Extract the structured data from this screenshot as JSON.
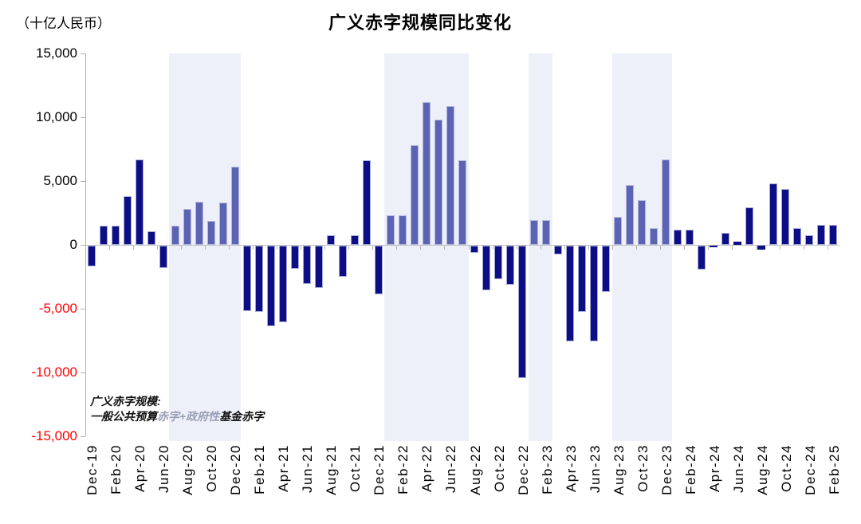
{
  "title": "广义赤字规模同比变化",
  "unit_label": "（十亿人民币）",
  "annotation": {
    "line1": "广义赤字规模:",
    "line2_prefix": "一般公共预算",
    "line2_faded": "赤字+政府性",
    "line2_suffix": "基金赤字"
  },
  "y_axis": {
    "tick_labels": [
      "15,000",
      "10,000",
      "5,000",
      "0",
      "-5,000",
      "-10,000",
      "-15,000"
    ],
    "tick_values": [
      15000,
      10000,
      5000,
      0,
      -5000,
      -10000,
      -15000
    ],
    "negative_label_color": "#ff0000"
  },
  "x_axis": {
    "tick_labels": [
      "Dec-19",
      "Feb-20",
      "Apr-20",
      "Jun-20",
      "Aug-20",
      "Oct-20",
      "Dec-20",
      "Feb-21",
      "Apr-21",
      "Jun-21",
      "Aug-21",
      "Oct-21",
      "Dec-21",
      "Feb-22",
      "Apr-22",
      "Jun-22",
      "Aug-22",
      "Oct-22",
      "Dec-22",
      "Feb-23",
      "Apr-23",
      "Jun-23",
      "Aug-23",
      "Oct-23",
      "Dec-23",
      "Feb-24",
      "Apr-24",
      "Jun-24",
      "Aug-24",
      "Oct-24",
      "Dec-24",
      "Feb-25"
    ]
  },
  "chart_data": {
    "type": "bar",
    "title": "广义赤字规模同比变化",
    "ylabel": "（十亿人民币）",
    "ylim": [
      -15000,
      15000
    ],
    "y_tick_step": 5000,
    "grid": false,
    "legend_position": "none",
    "x": [
      "Dec-19",
      "Jan-20",
      "Feb-20",
      "Mar-20",
      "Apr-20",
      "May-20",
      "Jun-20",
      "Jul-20",
      "Aug-20",
      "Sep-20",
      "Oct-20",
      "Nov-20",
      "Dec-20",
      "Jan-21",
      "Feb-21",
      "Mar-21",
      "Apr-21",
      "May-21",
      "Jun-21",
      "Jul-21",
      "Aug-21",
      "Sep-21",
      "Oct-21",
      "Nov-21",
      "Dec-21",
      "Jan-22",
      "Feb-22",
      "Mar-22",
      "Apr-22",
      "May-22",
      "Jun-22",
      "Jul-22",
      "Aug-22",
      "Sep-22",
      "Oct-22",
      "Nov-22",
      "Dec-22",
      "Jan-23",
      "Feb-23",
      "Mar-23",
      "Apr-23",
      "May-23",
      "Jun-23",
      "Jul-23",
      "Aug-23",
      "Sep-23",
      "Oct-23",
      "Nov-23",
      "Dec-23",
      "Jan-24",
      "Feb-24",
      "Mar-24",
      "Apr-24",
      "May-24",
      "Jun-24",
      "Jul-24",
      "Aug-24",
      "Sep-24",
      "Oct-24",
      "Nov-24",
      "Dec-24",
      "Jan-25",
      "Feb-25"
    ],
    "values": [
      -1600,
      1500,
      1500,
      3800,
      6700,
      1050,
      -1750,
      1500,
      2800,
      3400,
      1900,
      3300,
      6100,
      -5100,
      -5200,
      -6300,
      -6000,
      -1800,
      -3000,
      -3300,
      750,
      -2450,
      750,
      6650,
      -3800,
      2300,
      2300,
      7800,
      11200,
      9800,
      10900,
      6600,
      -550,
      -3500,
      -2600,
      -3050,
      -10400,
      1950,
      1950,
      -700,
      -7500,
      -5200,
      -7500,
      -3600,
      2200,
      4700,
      3500,
      1300,
      6700,
      1200,
      1200,
      -1900,
      -150,
      950,
      250,
      2950,
      -300,
      4800,
      4350,
      1300,
      750,
      1550,
      1550
    ],
    "shaded_periods": [
      [
        "Jul-20",
        "Dec-20"
      ],
      [
        "Jan-22",
        "Jul-22"
      ],
      [
        "Jan-23",
        "Feb-23"
      ],
      [
        "Aug-23",
        "Dec-23"
      ]
    ],
    "colors": {
      "bar_dark": "#0d0d85",
      "bar_light": "#5d63b3",
      "band": "#edf0f8",
      "axis_line": "#b3b3b3",
      "zero_line": "#bfbfbf",
      "negative_tick_label": "#ff0000"
    }
  }
}
